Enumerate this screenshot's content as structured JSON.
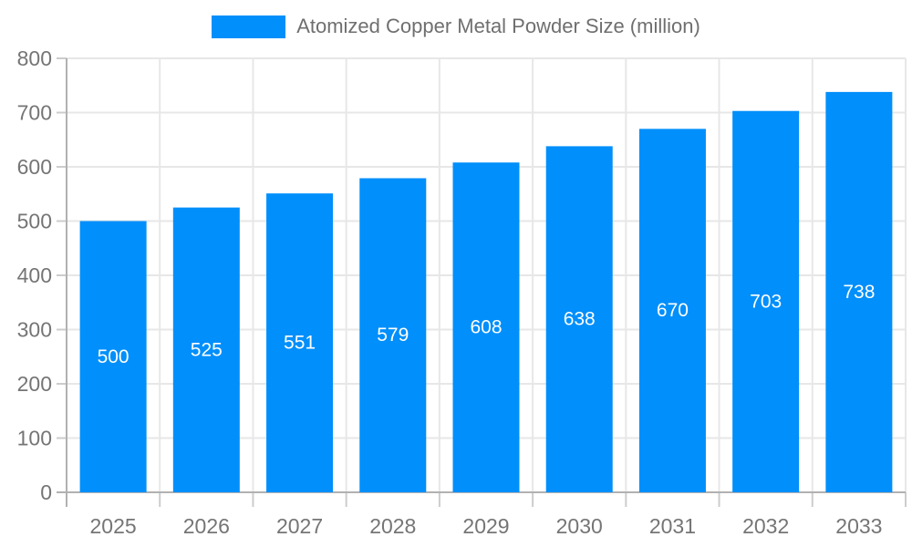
{
  "legend": {
    "label": "Atomized Copper Metal Powder Size (million)",
    "swatch_color": "#008FFB"
  },
  "chart_data": {
    "type": "bar",
    "title": "Atomized Copper Metal Powder Size (million)",
    "series_name": "Atomized Copper Metal Powder Size (million)",
    "categories": [
      "2025",
      "2026",
      "2027",
      "2028",
      "2029",
      "2030",
      "2031",
      "2032",
      "2033"
    ],
    "values": [
      500,
      525,
      551,
      579,
      608,
      638,
      670,
      703,
      738
    ],
    "xlabel": "",
    "ylabel": "",
    "ylim": [
      0,
      800
    ],
    "ytick_step": 100,
    "grid": true,
    "legend_position": "top",
    "colors": {
      "bar": "#008FFB",
      "grid": "#e7e7e7",
      "axis": "#b1b1b1",
      "tick": "#cccccc",
      "axis_label": "#757575",
      "value_label": "#ffffff"
    }
  }
}
